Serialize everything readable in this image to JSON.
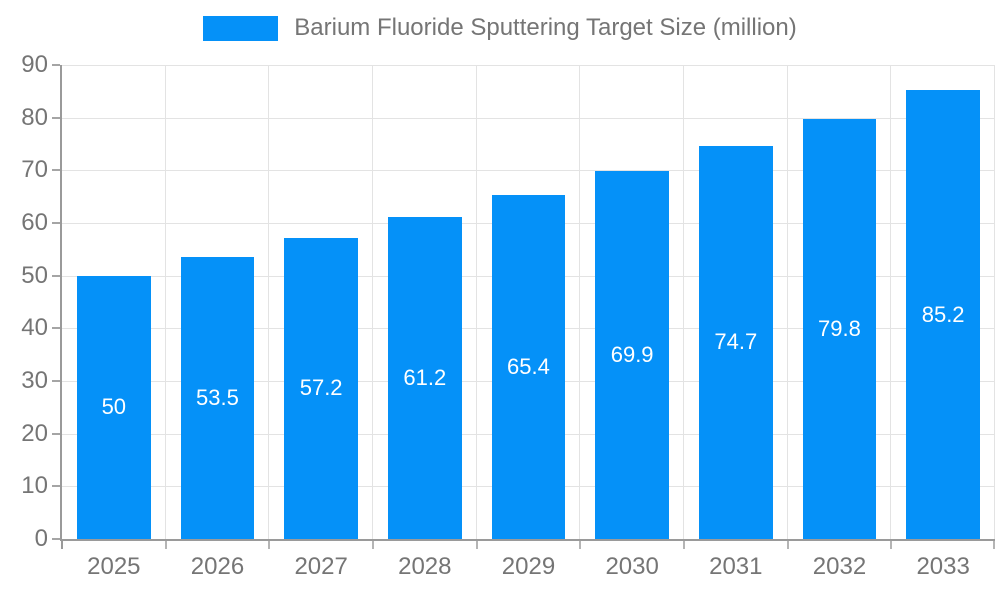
{
  "chart_data": {
    "type": "bar",
    "title": "Barium Fluoride Sputtering Target Size (million)",
    "categories": [
      "2025",
      "2026",
      "2027",
      "2028",
      "2029",
      "2030",
      "2031",
      "2032",
      "2033"
    ],
    "series": [
      {
        "name": "Barium Fluoride Sputtering Target Size (million)",
        "values": [
          50,
          53.5,
          57.2,
          61.2,
          65.4,
          69.9,
          74.7,
          79.8,
          85.2
        ]
      }
    ],
    "bar_labels": [
      "50",
      "53.5",
      "57.2",
      "61.2",
      "65.4",
      "69.9",
      "74.7",
      "79.8",
      "85.2"
    ],
    "xlabel": "",
    "ylabel": "",
    "ylim": [
      0,
      90
    ],
    "y_ticks": [
      0,
      10,
      20,
      30,
      40,
      50,
      60,
      70,
      80,
      90
    ],
    "grid": true,
    "legend_position": "top-center"
  },
  "colors": {
    "bar": "#0591f8",
    "grid": "#e3e3e3",
    "axis": "#9a9a9a",
    "tick": "#b5b5b5",
    "text": "#757575",
    "bar_label": "#ffffff",
    "background": "#ffffff"
  }
}
